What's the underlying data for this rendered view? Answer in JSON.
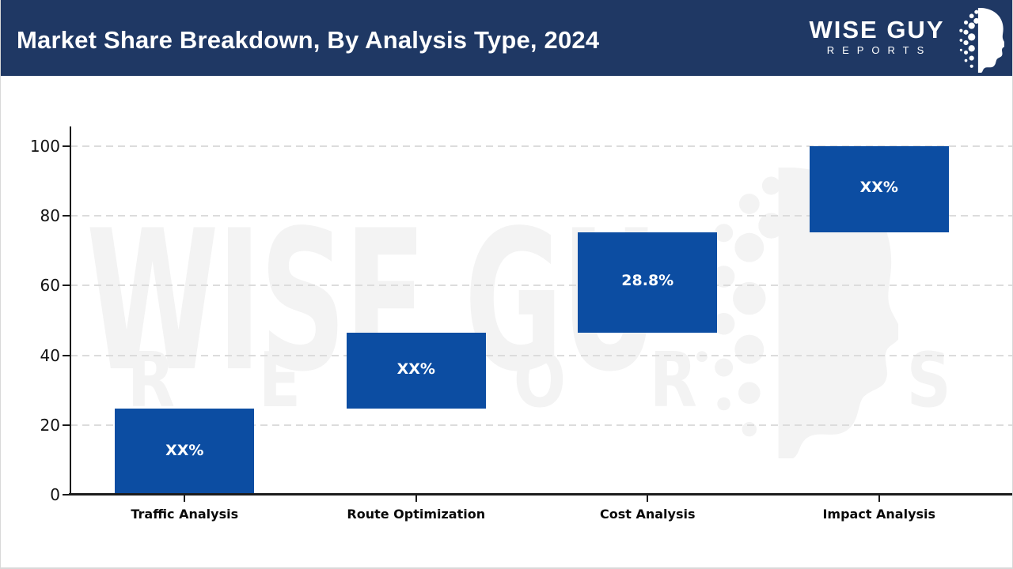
{
  "header": {
    "title": "Market Share Breakdown, By Analysis Type, 2024",
    "bg_color": "#1f3864",
    "logo": {
      "line1": "WISE GUY",
      "line2": "REPORTS"
    }
  },
  "watermark": {
    "line1": "WISE GU",
    "line2": "REPORTS",
    "color": "#f3f3f3"
  },
  "chart_data": {
    "type": "bar",
    "subtype": "waterfall",
    "title": "Market Share Breakdown, By Analysis Type, 2024",
    "categories": [
      "Traffic Analysis",
      "Route Optimization",
      "Cost Analysis",
      "Impact Analysis"
    ],
    "segments": [
      {
        "category": "Traffic Analysis",
        "start": 0,
        "end": 24.7,
        "label": "XX%"
      },
      {
        "category": "Route Optimization",
        "start": 24.7,
        "end": 46.5,
        "label": "XX%"
      },
      {
        "category": "Cost Analysis",
        "start": 46.5,
        "end": 75.3,
        "label": "28.8%"
      },
      {
        "category": "Impact Analysis",
        "start": 75.3,
        "end": 100,
        "label": "XX%"
      }
    ],
    "yticks": [
      0,
      20,
      40,
      60,
      80,
      100
    ],
    "ylim": [
      0,
      105.7
    ],
    "xlabel": "",
    "ylabel": "",
    "bar_color": "#0c4da2",
    "grid": "horizontal-dashed",
    "grid_color": "#dcdcdc",
    "legend": "none"
  }
}
